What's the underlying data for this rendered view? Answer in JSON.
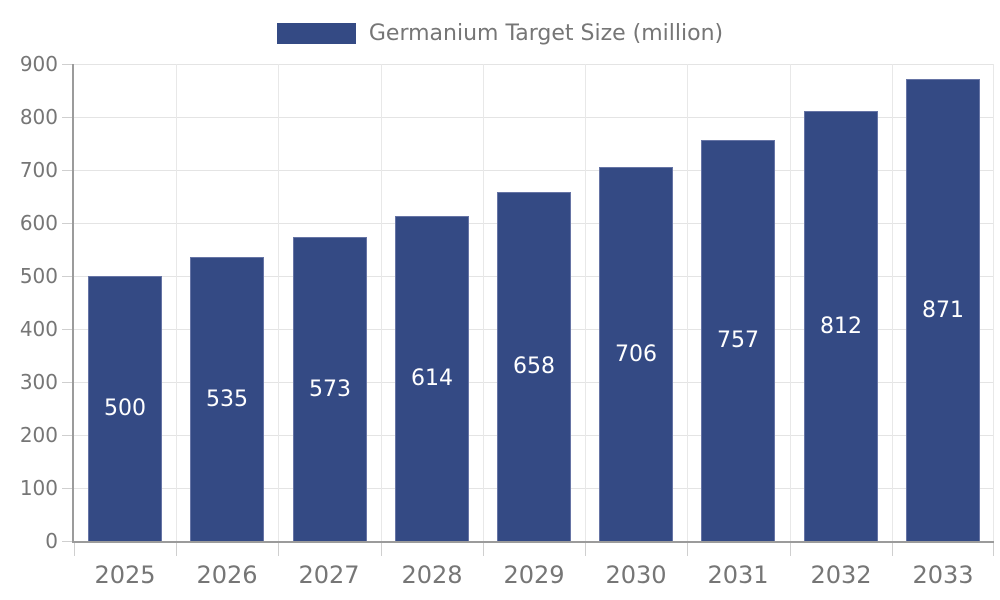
{
  "legend": {
    "label": "Germanium Target Size (million)"
  },
  "colors": {
    "bar_fill": "#344a84",
    "bar_edge": "#6674a5",
    "value_label_text": "#ffffff",
    "axis_text": "#767676",
    "gridline": "#e4e4e4",
    "axis_line": "#9b9b9b",
    "background": "#ffffff"
  },
  "chart_data": {
    "type": "bar",
    "title": "",
    "xlabel": "",
    "ylabel": "",
    "categories": [
      "2025",
      "2026",
      "2027",
      "2028",
      "2029",
      "2030",
      "2031",
      "2032",
      "2033"
    ],
    "series": [
      {
        "name": "Germanium Target Size (million)",
        "values": [
          500,
          535,
          573,
          614,
          658,
          706,
          757,
          812,
          871
        ]
      }
    ],
    "value_labels": [
      "500",
      "535",
      "573",
      "614",
      "658",
      "706",
      "757",
      "812",
      "871"
    ],
    "value_label_position": "inside-center",
    "ylim": [
      0,
      900
    ],
    "yticks": [
      0,
      100,
      200,
      300,
      400,
      500,
      600,
      700,
      800,
      900
    ],
    "grid": true,
    "legend_position": "top-center"
  }
}
